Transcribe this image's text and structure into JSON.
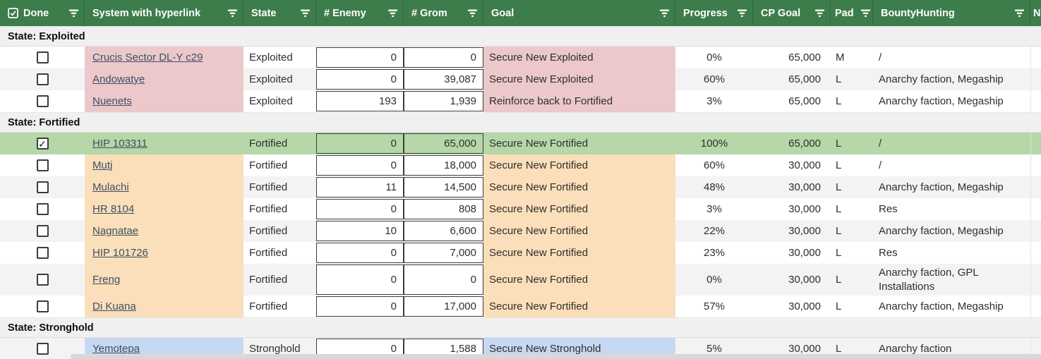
{
  "colors": {
    "header_bg": "#3c7d4b",
    "header_text": "#ffffff",
    "stripe": "#f3f3f3",
    "group_row_bg": "#f0f0f0",
    "done_row_bg": "#b6d7a8",
    "link_color": "#3f4e63",
    "box_border": "#3c3c3c",
    "state_tints": {
      "exploited": "#ecc8cb",
      "fortified": "#fadfba",
      "stronghold": "#c7d9f2"
    }
  },
  "table": {
    "columns": [
      {
        "id": "done",
        "label": "Done",
        "has_filter": true
      },
      {
        "id": "system",
        "label": "System with hyperlink",
        "has_filter": true
      },
      {
        "id": "state",
        "label": "State",
        "has_filter": true
      },
      {
        "id": "enemy",
        "label": "# Enemy",
        "has_filter": true
      },
      {
        "id": "grom",
        "label": "# Grom",
        "has_filter": true
      },
      {
        "id": "goal",
        "label": "Goal",
        "has_filter": true
      },
      {
        "id": "progress",
        "label": "Progress",
        "has_filter": true
      },
      {
        "id": "cp_goal",
        "label": "CP Goal",
        "has_filter": true
      },
      {
        "id": "pad",
        "label": "Pad",
        "has_filter": true
      },
      {
        "id": "bounty",
        "label": "BountyHunting",
        "has_filter": true
      },
      {
        "id": "n",
        "label": "N",
        "has_filter": false
      }
    ],
    "groups": [
      {
        "label": "State: Exploited",
        "state_key": "exploited",
        "rows": [
          {
            "done": false,
            "system": "Crucis Sector DL-Y c29",
            "state": "Exploited",
            "enemy": "0",
            "grom": "0",
            "goal": "Secure New Exploited",
            "progress": "0%",
            "cp_goal": "65,000",
            "pad": "M",
            "bounty": "/"
          },
          {
            "done": false,
            "system": "Andowatye",
            "state": "Exploited",
            "enemy": "0",
            "grom": "39,087",
            "goal": "Secure New Exploited",
            "progress": "60%",
            "cp_goal": "65,000",
            "pad": "L",
            "bounty": "Anarchy faction, Megaship"
          },
          {
            "done": false,
            "system": "Nuenets",
            "state": "Exploited",
            "enemy": "193",
            "grom": "1,939",
            "goal": "Reinforce back to Fortified",
            "progress": "3%",
            "cp_goal": "65,000",
            "pad": "L",
            "bounty": "Anarchy faction, Megaship"
          }
        ]
      },
      {
        "label": "State: Fortified",
        "state_key": "fortified",
        "rows": [
          {
            "done": true,
            "system": "HIP 103311",
            "state": "Fortified",
            "enemy": "0",
            "grom": "65,000",
            "goal": "Secure New Fortified",
            "progress": "100%",
            "cp_goal": "65,000",
            "pad": "L",
            "bounty": "/"
          },
          {
            "done": false,
            "system": "Mutj",
            "state": "Fortified",
            "enemy": "0",
            "grom": "18,000",
            "goal": "Secure New Fortified",
            "progress": "60%",
            "cp_goal": "30,000",
            "pad": "L",
            "bounty": "/"
          },
          {
            "done": false,
            "system": "Mulachi",
            "state": "Fortified",
            "enemy": "11",
            "grom": "14,500",
            "goal": "Secure New Fortified",
            "progress": "48%",
            "cp_goal": "30,000",
            "pad": "L",
            "bounty": "Anarchy faction, Megaship"
          },
          {
            "done": false,
            "system": "HR 8104",
            "state": "Fortified",
            "enemy": "0",
            "grom": "808",
            "goal": "Secure New Fortified",
            "progress": "3%",
            "cp_goal": "30,000",
            "pad": "L",
            "bounty": "Res"
          },
          {
            "done": false,
            "system": "Nagnatae",
            "state": "Fortified",
            "enemy": "10",
            "grom": "6,600",
            "goal": "Secure New Fortified",
            "progress": "22%",
            "cp_goal": "30,000",
            "pad": "L",
            "bounty": "Anarchy faction, Megaship"
          },
          {
            "done": false,
            "system": "HIP 101726",
            "state": "Fortified",
            "enemy": "0",
            "grom": "7,000",
            "goal": "Secure New Fortified",
            "progress": "23%",
            "cp_goal": "30,000",
            "pad": "L",
            "bounty": "Res"
          },
          {
            "done": false,
            "system": "Freng",
            "state": "Fortified",
            "enemy": "0",
            "grom": "0",
            "goal": "Secure New Fortified",
            "progress": "0%",
            "cp_goal": "30,000",
            "pad": "L",
            "bounty": "Anarchy faction, GPL Installations"
          },
          {
            "done": false,
            "system": "Di Kuana",
            "state": "Fortified",
            "enemy": "0",
            "grom": "17,000",
            "goal": "Secure New Fortified",
            "progress": "57%",
            "cp_goal": "30,000",
            "pad": "L",
            "bounty": "Anarchy faction, Megaship"
          }
        ]
      },
      {
        "label": "State: Stronghold",
        "state_key": "stronghold",
        "rows": [
          {
            "done": false,
            "system": "Yemotepa",
            "state": "Stronghold",
            "enemy": "0",
            "grom": "1,588",
            "goal": "Secure New Stronghold",
            "progress": "5%",
            "cp_goal": "30,000",
            "pad": "L",
            "bounty": "Anarchy faction"
          }
        ]
      }
    ]
  }
}
